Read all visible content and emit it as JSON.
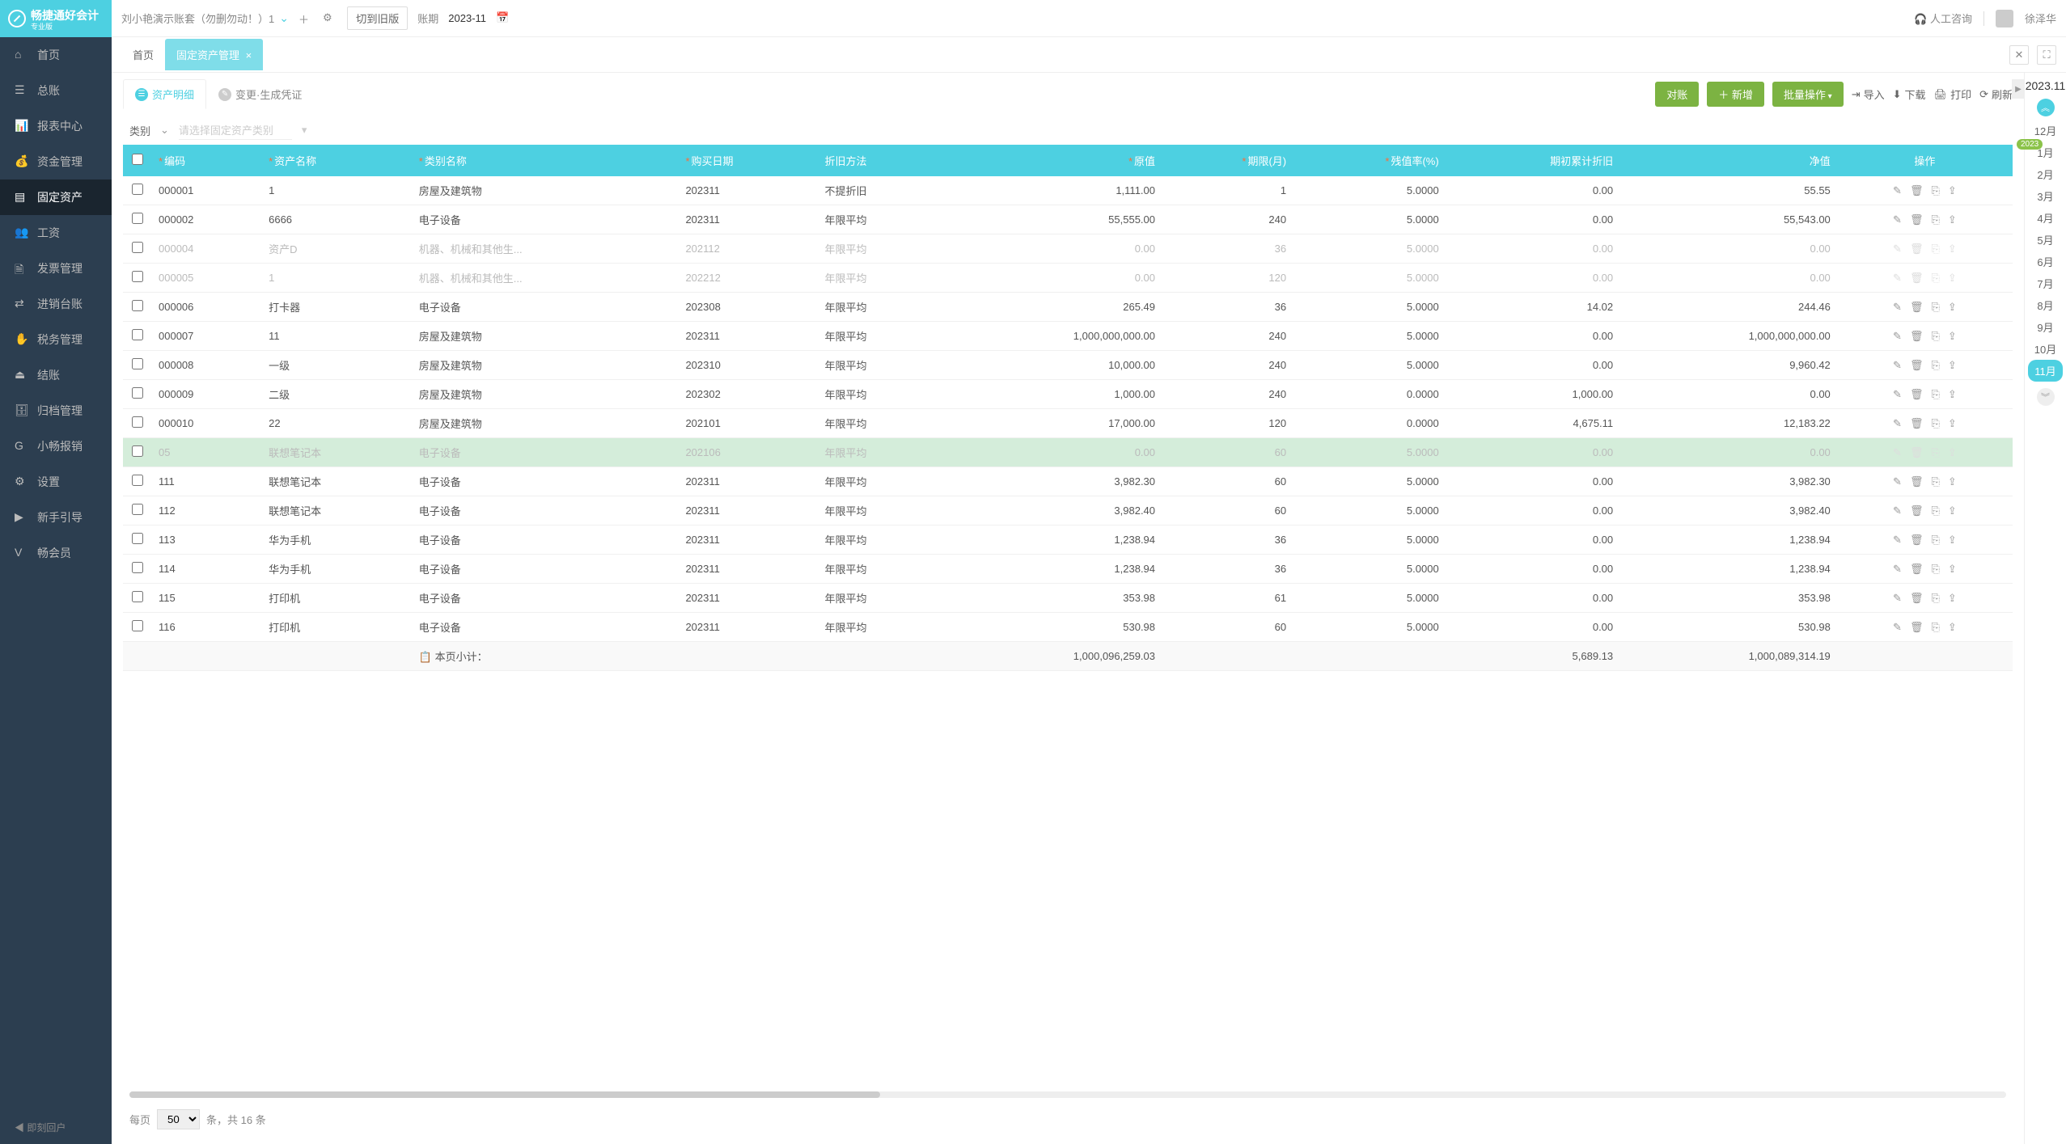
{
  "logo": {
    "title": "畅捷通好会计",
    "sub": "专业版"
  },
  "sidebar": {
    "items": [
      {
        "label": "首页",
        "icon": "home"
      },
      {
        "label": "总账",
        "icon": "ledger"
      },
      {
        "label": "报表中心",
        "icon": "report"
      },
      {
        "label": "资金管理",
        "icon": "fund"
      },
      {
        "label": "固定资产",
        "icon": "asset",
        "active": true
      },
      {
        "label": "工资",
        "icon": "salary"
      },
      {
        "label": "发票管理",
        "icon": "invoice"
      },
      {
        "label": "进销台账",
        "icon": "inout"
      },
      {
        "label": "税务管理",
        "icon": "tax"
      },
      {
        "label": "结账",
        "icon": "close"
      },
      {
        "label": "归档管理",
        "icon": "archive"
      },
      {
        "label": "小畅报销",
        "icon": "reimburse"
      },
      {
        "label": "设置",
        "icon": "settings"
      },
      {
        "label": "新手引导",
        "icon": "guide"
      },
      {
        "label": "畅会员",
        "icon": "member"
      }
    ]
  },
  "topbar": {
    "account": "刘小艳演示账套（勿删勿动！）1",
    "switch_old": "切到旧版",
    "period_label": "账期",
    "period_value": "2023-11",
    "consult": "人工咨询",
    "user": "徐泽华"
  },
  "tabs": [
    {
      "label": "首页"
    },
    {
      "label": "固定资产管理",
      "active": true,
      "closable": true
    }
  ],
  "subtabs": [
    {
      "label": "资产明细",
      "active": true
    },
    {
      "label": "变更·生成凭证"
    }
  ],
  "toolbar": {
    "reconcile": "对账",
    "add": "新增",
    "batch": "批量操作",
    "import": "导入",
    "download": "下载",
    "print": "打印",
    "refresh": "刷新"
  },
  "filter": {
    "label": "类别",
    "placeholder": "请选择固定资产类别"
  },
  "columns": [
    {
      "label": "编码",
      "req": true
    },
    {
      "label": "资产名称",
      "req": true
    },
    {
      "label": "类别名称",
      "req": true
    },
    {
      "label": "购买日期",
      "req": true
    },
    {
      "label": "折旧方法"
    },
    {
      "label": "原值",
      "req": true,
      "num": true
    },
    {
      "label": "期限(月)",
      "req": true,
      "num": true
    },
    {
      "label": "残值率(%)",
      "req": true,
      "num": true
    },
    {
      "label": "期初累计折旧",
      "num": true
    },
    {
      "label": "净值",
      "num": true
    },
    {
      "label": "操作",
      "ctr": true
    }
  ],
  "rows": [
    {
      "code": "000001",
      "name": "1",
      "cat": "房屋及建筑物",
      "date": "202311",
      "method": "不提折旧",
      "orig": "1,111.00",
      "term": "1",
      "salvage": "5.0000",
      "acc": "0.00",
      "net": "55.55"
    },
    {
      "code": "000002",
      "name": "6666",
      "cat": "电子设备",
      "date": "202311",
      "method": "年限平均",
      "orig": "55,555.00",
      "term": "240",
      "salvage": "5.0000",
      "acc": "0.00",
      "net": "55,543.00"
    },
    {
      "code": "000004",
      "name": "资产D",
      "cat": "机器、机械和其他生...",
      "date": "202112",
      "method": "年限平均",
      "orig": "0.00",
      "term": "36",
      "salvage": "5.0000",
      "acc": "0.00",
      "net": "0.00",
      "disabled": true
    },
    {
      "code": "000005",
      "name": "1",
      "cat": "机器、机械和其他生...",
      "date": "202212",
      "method": "年限平均",
      "orig": "0.00",
      "term": "120",
      "salvage": "5.0000",
      "acc": "0.00",
      "net": "0.00",
      "disabled": true
    },
    {
      "code": "000006",
      "name": "打卡器",
      "cat": "电子设备",
      "date": "202308",
      "method": "年限平均",
      "orig": "265.49",
      "term": "36",
      "salvage": "5.0000",
      "acc": "14.02",
      "net": "244.46"
    },
    {
      "code": "000007",
      "name": "11",
      "cat": "房屋及建筑物",
      "date": "202311",
      "method": "年限平均",
      "orig": "1,000,000,000.00",
      "term": "240",
      "salvage": "5.0000",
      "acc": "0.00",
      "net": "1,000,000,000.00"
    },
    {
      "code": "000008",
      "name": "一级",
      "cat": "房屋及建筑物",
      "date": "202310",
      "method": "年限平均",
      "orig": "10,000.00",
      "term": "240",
      "salvage": "5.0000",
      "acc": "0.00",
      "net": "9,960.42"
    },
    {
      "code": "000009",
      "name": "二级",
      "cat": "房屋及建筑物",
      "date": "202302",
      "method": "年限平均",
      "orig": "1,000.00",
      "term": "240",
      "salvage": "0.0000",
      "acc": "1,000.00",
      "net": "0.00"
    },
    {
      "code": "000010",
      "name": "22",
      "cat": "房屋及建筑物",
      "date": "202101",
      "method": "年限平均",
      "orig": "17,000.00",
      "term": "120",
      "salvage": "0.0000",
      "acc": "4,675.11",
      "net": "12,183.22"
    },
    {
      "code": "05",
      "name": "联想笔记本",
      "cat": "电子设备",
      "date": "202106",
      "method": "年限平均",
      "orig": "0.00",
      "term": "60",
      "salvage": "5.0000",
      "acc": "0.00",
      "net": "0.00",
      "hl": true,
      "disabled": true
    },
    {
      "code": "111",
      "name": "联想笔记本",
      "cat": "电子设备",
      "date": "202311",
      "method": "年限平均",
      "orig": "3,982.30",
      "term": "60",
      "salvage": "5.0000",
      "acc": "0.00",
      "net": "3,982.30"
    },
    {
      "code": "112",
      "name": "联想笔记本",
      "cat": "电子设备",
      "date": "202311",
      "method": "年限平均",
      "orig": "3,982.40",
      "term": "60",
      "salvage": "5.0000",
      "acc": "0.00",
      "net": "3,982.40"
    },
    {
      "code": "113",
      "name": "华为手机",
      "cat": "电子设备",
      "date": "202311",
      "method": "年限平均",
      "orig": "1,238.94",
      "term": "36",
      "salvage": "5.0000",
      "acc": "0.00",
      "net": "1,238.94"
    },
    {
      "code": "114",
      "name": "华为手机",
      "cat": "电子设备",
      "date": "202311",
      "method": "年限平均",
      "orig": "1,238.94",
      "term": "36",
      "salvage": "5.0000",
      "acc": "0.00",
      "net": "1,238.94"
    },
    {
      "code": "115",
      "name": "打印机",
      "cat": "电子设备",
      "date": "202311",
      "method": "年限平均",
      "orig": "353.98",
      "term": "61",
      "salvage": "5.0000",
      "acc": "0.00",
      "net": "353.98"
    },
    {
      "code": "116",
      "name": "打印机",
      "cat": "电子设备",
      "date": "202311",
      "method": "年限平均",
      "orig": "530.98",
      "term": "60",
      "salvage": "5.0000",
      "acc": "0.00",
      "net": "530.98"
    }
  ],
  "subtotal": {
    "label": "本页小计：",
    "orig": "1,000,096,259.03",
    "acc": "5,689.13",
    "net": "1,000,089,314.19"
  },
  "pagination": {
    "per_page_label": "每页",
    "per_page": "50",
    "total_text": "条，共 16 条"
  },
  "datepanel": {
    "year": "2023.11",
    "badge": "2023",
    "months": [
      "12月",
      "1月",
      "2月",
      "3月",
      "4月",
      "5月",
      "6月",
      "7月",
      "8月",
      "9月",
      "10月",
      "11月"
    ],
    "active_index": 11
  }
}
